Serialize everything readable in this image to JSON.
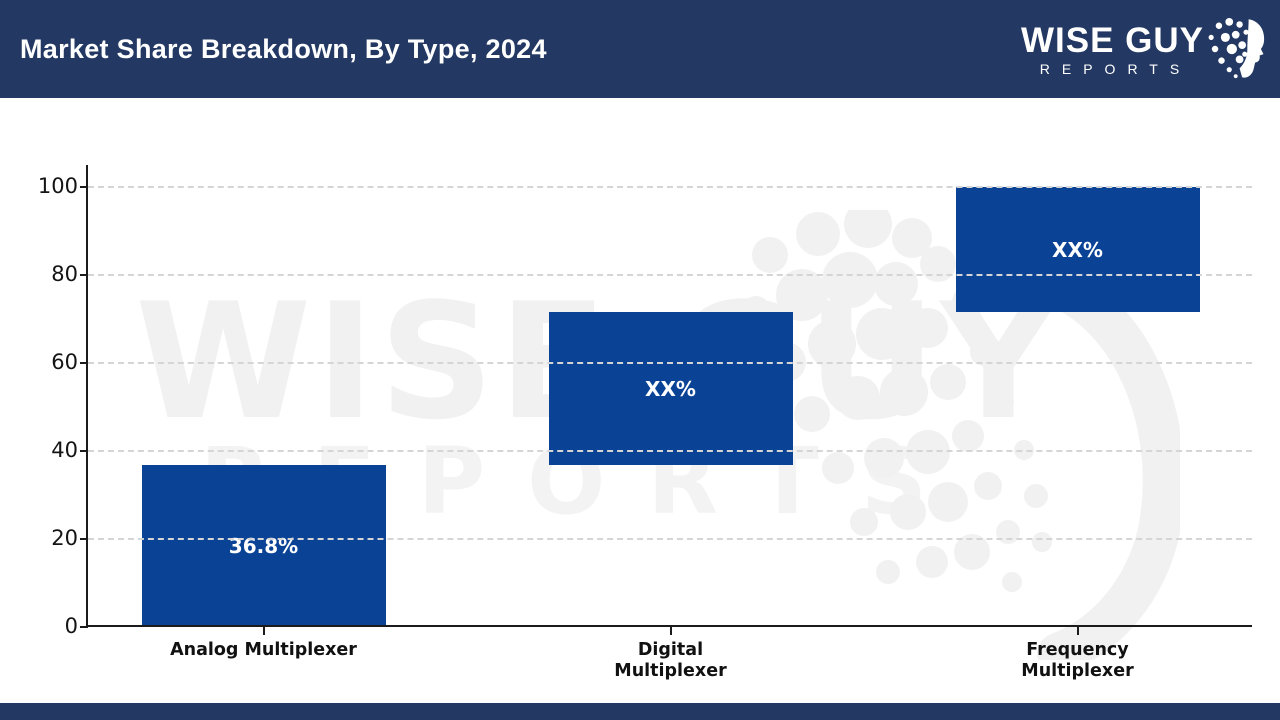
{
  "header": {
    "title": "Market Share Breakdown, By Type, 2024",
    "logo_line1": "WISE GUY",
    "logo_line2": "REPORTS"
  },
  "watermark": {
    "line1": "WISE GUY",
    "line2": "REPORTS"
  },
  "colors": {
    "header_bg": "#233963",
    "footer_bg": "#233963",
    "bar_blue": "#0A4396",
    "gridline": "#d5d5d5",
    "axis": "#1b1b1b",
    "bar_label_text": "#ffffff",
    "watermark_gray": "#f1f1f1"
  },
  "chart_data": {
    "type": "bar",
    "subtype": "floating-segment (waterfall style)",
    "title": "Market Share Breakdown, By Type, 2024",
    "categories": [
      "Analog Multiplexer",
      "Digital Multiplexer",
      "Frequency Multiplexer"
    ],
    "categories_lines": [
      [
        "Analog Multiplexer"
      ],
      [
        "Digital",
        "Multiplexer"
      ],
      [
        "Frequency",
        "Multiplexer"
      ]
    ],
    "segments": [
      {
        "category": "Analog Multiplexer",
        "start": 0,
        "end": 36.8,
        "label": "36.8%"
      },
      {
        "category": "Digital Multiplexer",
        "start": 36.8,
        "end": 71.5,
        "label": "XX%"
      },
      {
        "category": "Frequency Multiplexer",
        "start": 71.5,
        "end": 100,
        "label": "XX%"
      }
    ],
    "xlabel": "",
    "ylabel": "",
    "ylim": [
      0,
      100
    ],
    "yticks": [
      0,
      20,
      40,
      60,
      80,
      100
    ],
    "grid": "horizontal dashed, drawn over bars",
    "legend": "none"
  }
}
